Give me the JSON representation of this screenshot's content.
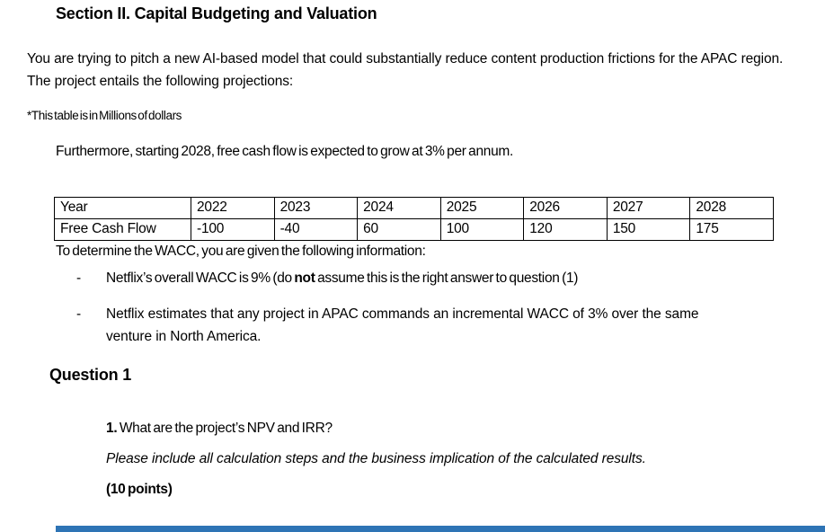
{
  "doc": {
    "section_title": "Section II. Capital Budgeting and Valuation",
    "intro": "You are trying to pitch a new AI-based model that could substantially reduce content production frictions for the APAC region. The project entails the following projections:",
    "table_note": "*This table is in Millions of dollars",
    "growth_note": "Furthermore, starting 2028, free cash flow is expected to grow at 3% per annum.",
    "wacc_intro": "To determine the WACC, you are given the following information:",
    "bullet_marker": "-",
    "bullet1": {
      "pre": "Netflix’s overall WACC is 9% (do ",
      "bold": "not",
      "post": " assume this is the right answer to question (1)"
    },
    "bullet2": "Netflix estimates that any project in APAC commands an incremental WACC of 3% over the same venture in North America.",
    "question_heading": "Question 1",
    "q1_number": "1.",
    "q1_text": " What are the project’s NPV and IRR?",
    "q1_note": "Please include all calculation steps and the business implication of the calculated results.",
    "points": "(10 points)"
  },
  "table": {
    "header": [
      "Year",
      "2022",
      "2023",
      "2024",
      "2025",
      "2026",
      "2027",
      "2028"
    ],
    "row_label": "Free Cash Flow",
    "values": [
      "-100",
      "-40",
      "60",
      "100",
      "120",
      "150",
      "175"
    ]
  },
  "colors": {
    "accent_bar": "#2e74b5",
    "text": "#000000",
    "background": "#ffffff"
  }
}
